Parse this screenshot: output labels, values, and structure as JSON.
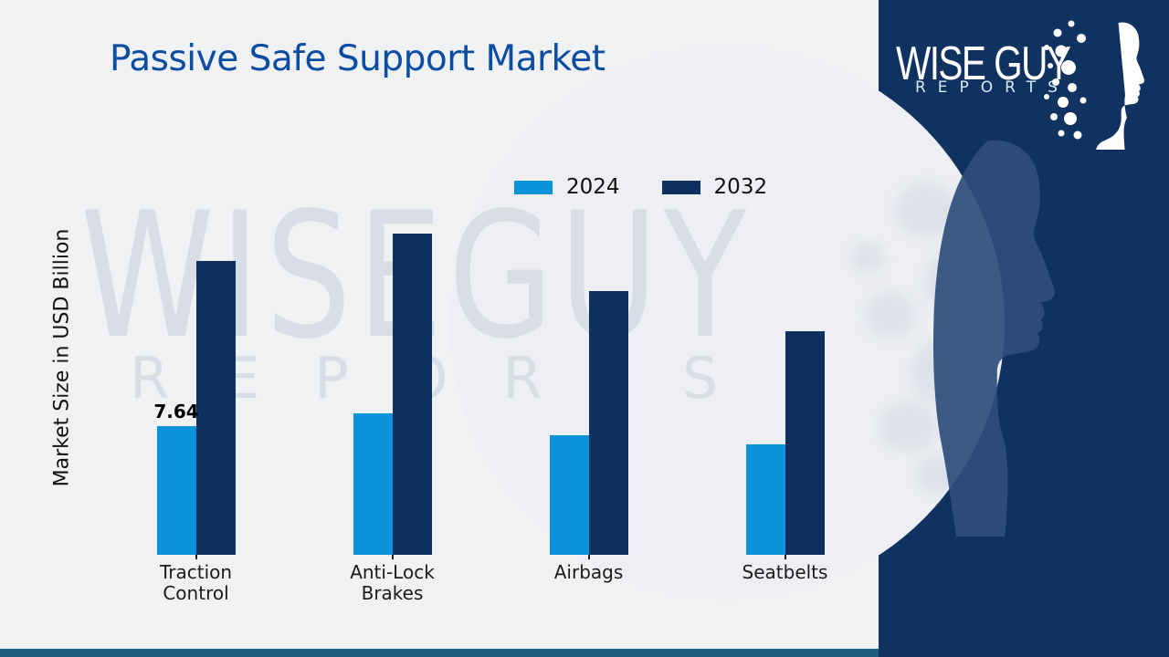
{
  "page": {
    "background": "#eff1f3",
    "bottom_bar_color": "#1d5f7d"
  },
  "title": {
    "text": "Passive Safe Support Market",
    "color": "#0c4da2"
  },
  "brand": {
    "name": "WISE GUY",
    "sub": "REPORTS",
    "panel_color": "#0f3260",
    "name_color": "#ffffff",
    "sub_color": "#d8e9f4"
  },
  "watermark": {
    "line1": "WISEGUY",
    "line2": "REPORTS"
  },
  "chart_data": {
    "type": "bar",
    "title": "Passive Safe Support Market",
    "xlabel": "",
    "ylabel": "Market Size in USD Billion",
    "categories": [
      "Traction Control",
      "Anti-Lock Brakes",
      "Airbags",
      "Seatbelts"
    ],
    "categories_display": [
      [
        "Traction",
        "Control"
      ],
      [
        "Anti-Lock",
        "Brakes"
      ],
      [
        "Airbags"
      ],
      [
        "Seatbelts"
      ]
    ],
    "series": [
      {
        "name": "2024",
        "color": "#0a93da",
        "values": [
          7.64,
          8.4,
          7.1,
          6.56
        ]
      },
      {
        "name": "2032",
        "color": "#0d3060",
        "values": [
          17.45,
          19.07,
          15.66,
          13.27
        ]
      }
    ],
    "ylim": [
      0,
      20
    ],
    "grid": false,
    "legend_position": "top-center",
    "data_labels": [
      {
        "series": "2024",
        "category": "Traction Control",
        "text": "7.64"
      }
    ]
  }
}
